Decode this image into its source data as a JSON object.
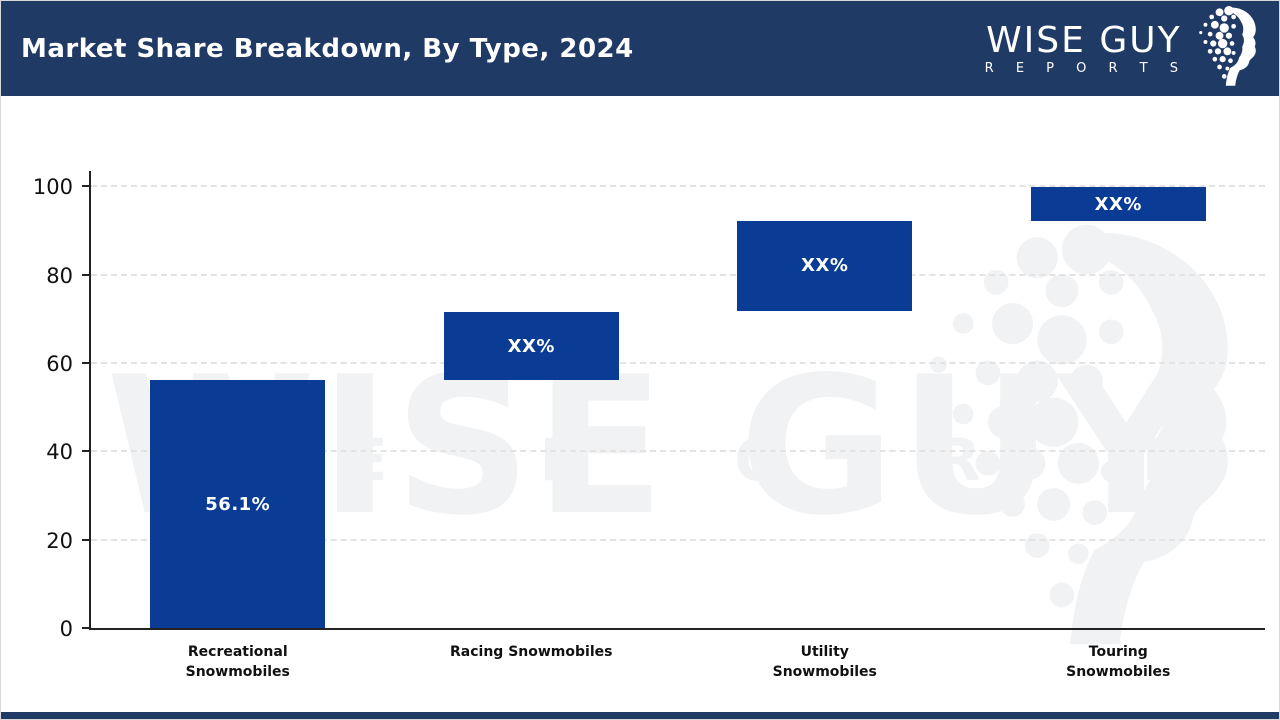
{
  "header": {
    "title": "Market Share Breakdown, By Type, 2024",
    "bg_color": "#203a66",
    "logo": {
      "name": "WISE GUY",
      "subtitle": "R E P O R T S"
    }
  },
  "watermark": {
    "line1": "WISE GUY",
    "line2": "R E P O R T S"
  },
  "chart_data": {
    "type": "bar",
    "subtype": "waterfall",
    "title": "Market Share Breakdown, By Type, 2024",
    "xlabel": "",
    "ylabel": "",
    "ylim": [
      0,
      103.5
    ],
    "yticks": [
      0,
      20,
      40,
      60,
      80,
      100
    ],
    "grid": "horizontal dashed",
    "legend": "none",
    "bar_color": "#0a3c96",
    "bar_label_color": "#ffffff",
    "categories": [
      "Recreational Snowmobiles",
      "Racing Snowmobiles",
      "Utility Snowmobiles",
      "Touring Snowmobiles"
    ],
    "bars": [
      {
        "category_lines": [
          "Recreational",
          "Snowmobiles"
        ],
        "label": "56.1%",
        "start": 0,
        "end": 56.1
      },
      {
        "category_lines": [
          "Racing Snowmobiles"
        ],
        "label": "XX%",
        "start": 56.1,
        "end": 71.5
      },
      {
        "category_lines": [
          "Utility",
          "Snowmobiles"
        ],
        "label": "XX%",
        "start": 71.9,
        "end": 92.2
      },
      {
        "category_lines": [
          "Touring",
          "Snowmobiles"
        ],
        "label": "XX%",
        "start": 92.2,
        "end": 99.8
      }
    ]
  },
  "footer": {
    "bg_color": "#203a66"
  }
}
